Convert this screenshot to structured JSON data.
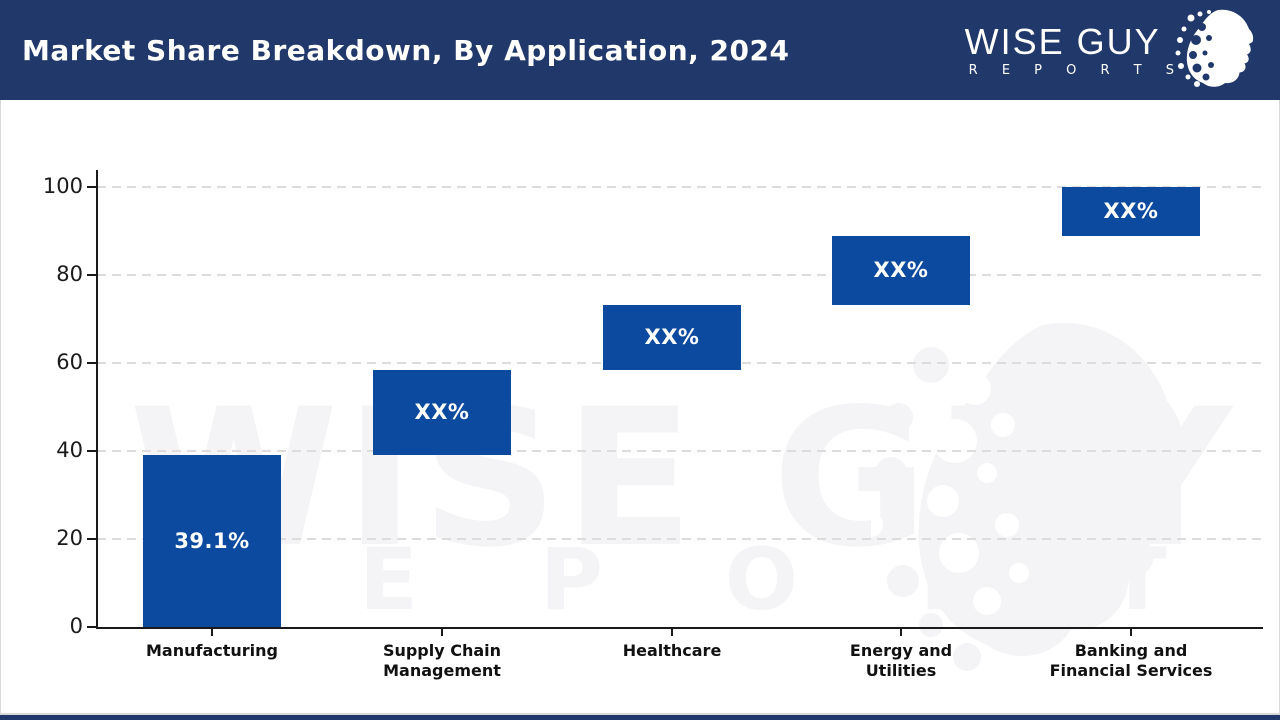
{
  "header": {
    "title": "Market Share Breakdown, By Application, 2024"
  },
  "logo": {
    "name": "WISE GUY",
    "sub": "R E P O R T S"
  },
  "watermark": {
    "name": "WISE GUY",
    "sub": "R E P O R T S"
  },
  "colors": {
    "header_bg": "#21386B",
    "bar": "#0B4A9E",
    "grid": "#DCDCDC",
    "axis": "#1A1A1A",
    "watermark": "#F4F4F6",
    "footer": "#21386B"
  },
  "chart_data": {
    "type": "bar",
    "variant": "waterfall",
    "title": "Market Share Breakdown, By Application, 2024",
    "categories": [
      "Manufacturing",
      "Supply Chain Management",
      "Healthcare",
      "Energy and Utilities",
      "Banking and Financial Services"
    ],
    "category_lines": [
      [
        "Manufacturing"
      ],
      [
        "Supply Chain",
        "Management"
      ],
      [
        "Healthcare"
      ],
      [
        "Energy and",
        "Utilities"
      ],
      [
        "Banking and",
        "Financial Services"
      ]
    ],
    "series": [
      {
        "name": "Market Share",
        "starts": [
          0,
          39.1,
          58.5,
          73.2,
          88.9
        ],
        "values": [
          39.1,
          19.4,
          14.7,
          15.7,
          11.1
        ],
        "labels": [
          "39.1%",
          "XX%",
          "XX%",
          "XX%",
          "XX%"
        ]
      }
    ],
    "ylim": [
      0,
      100
    ],
    "yticks": [
      0,
      20,
      40,
      60,
      80,
      100
    ],
    "grid": "horizontal-dashed",
    "legend": "none"
  }
}
